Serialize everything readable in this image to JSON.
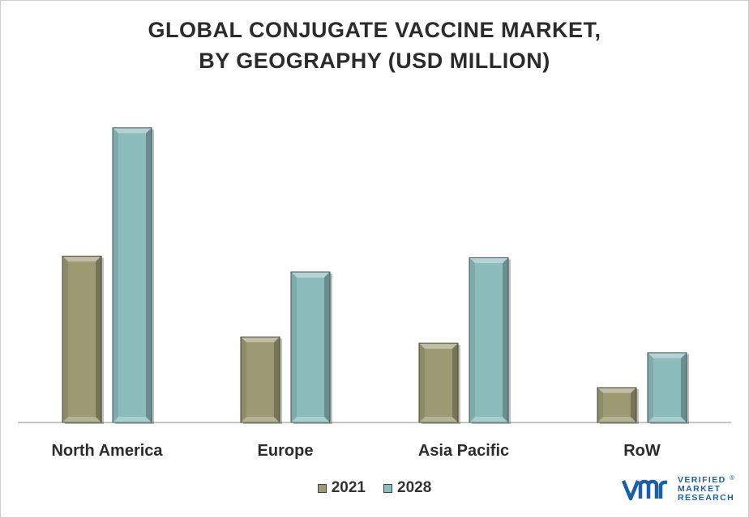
{
  "chart_data": {
    "type": "bar",
    "title_lines": [
      "GLOBAL CONJUGATE VACCINE MARKET,",
      "BY GEOGRAPHY (USD MILLION)"
    ],
    "categories": [
      "North America",
      "Europe",
      "Asia Pacific",
      "RoW"
    ],
    "series": [
      {
        "name": "2021",
        "values": [
          210,
          108,
          100,
          44
        ],
        "color": "#9c9a72"
      },
      {
        "name": "2028",
        "values": [
          372,
          190,
          208,
          88
        ],
        "color": "#8dbcbd"
      }
    ],
    "ylim": [
      0,
      380
    ],
    "grid": false,
    "legend": "bottom-center",
    "xlabel": "",
    "ylabel": ""
  },
  "brand": {
    "logo_word_1": "VERIFIED",
    "logo_word_2": "MARKET",
    "logo_word_3": "RESEARCH",
    "logo_mark": "vmr",
    "registered": "®",
    "color": "#1a5fa8"
  }
}
